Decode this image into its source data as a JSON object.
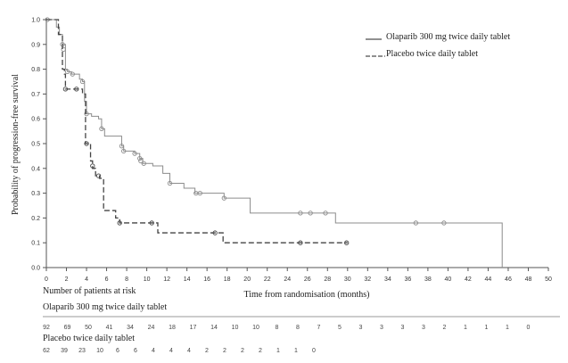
{
  "chart_data": {
    "type": "line",
    "subtype": "kaplan-meier",
    "ylabel": "Probability of progression-free survival",
    "xlabel": "Time from randomisation (months)",
    "xlim": [
      0,
      50
    ],
    "ylim": [
      0,
      1.0
    ],
    "x_ticks": [
      "0",
      "2",
      "4",
      "6",
      "8",
      "10",
      "12",
      "14",
      "16",
      "18",
      "20",
      "22",
      "24",
      "26",
      "28",
      "30",
      "32",
      "34",
      "36",
      "38",
      "40",
      "42",
      "44",
      "46",
      "48",
      "50"
    ],
    "y_ticks": [
      "0.0",
      "0.1",
      "0.2",
      "0.3",
      "0.4",
      "0.5",
      "0.6",
      "0.7",
      "0.8",
      "0.9",
      "1.0"
    ],
    "grid": false,
    "legend_position": "top-right",
    "series": [
      {
        "name": "Olaparib 300 mg twice daily tablet",
        "line_style": "solid",
        "color": "#8c8c8c",
        "steps": [
          [
            0,
            1.0
          ],
          [
            1.0,
            0.97
          ],
          [
            1.3,
            0.94
          ],
          [
            1.6,
            0.9
          ],
          [
            1.9,
            0.8
          ],
          [
            2.1,
            0.79
          ],
          [
            2.5,
            0.78
          ],
          [
            3.3,
            0.76
          ],
          [
            3.6,
            0.75
          ],
          [
            3.8,
            0.67
          ],
          [
            4.0,
            0.62
          ],
          [
            4.5,
            0.61
          ],
          [
            5.2,
            0.6
          ],
          [
            5.5,
            0.56
          ],
          [
            5.8,
            0.53
          ],
          [
            7.5,
            0.49
          ],
          [
            7.7,
            0.47
          ],
          [
            8.8,
            0.46
          ],
          [
            9.3,
            0.44
          ],
          [
            9.6,
            0.42
          ],
          [
            10.6,
            0.41
          ],
          [
            11.6,
            0.38
          ],
          [
            12.3,
            0.34
          ],
          [
            13.7,
            0.32
          ],
          [
            14.8,
            0.3
          ],
          [
            17.7,
            0.28
          ],
          [
            20.3,
            0.22
          ],
          [
            28.5,
            0.22
          ],
          [
            28.8,
            0.18
          ],
          [
            45.4,
            0.18
          ],
          [
            45.4,
            0.0
          ]
        ],
        "censored": [
          [
            0.1,
            1.0
          ],
          [
            1.6,
            0.9
          ],
          [
            1.7,
            0.88
          ],
          [
            2.1,
            0.79
          ],
          [
            2.6,
            0.78
          ],
          [
            3.6,
            0.75
          ],
          [
            4.0,
            0.62
          ],
          [
            5.5,
            0.56
          ],
          [
            7.5,
            0.49
          ],
          [
            7.7,
            0.47
          ],
          [
            8.8,
            0.46
          ],
          [
            9.3,
            0.44
          ],
          [
            9.4,
            0.43
          ],
          [
            9.7,
            0.42
          ],
          [
            12.3,
            0.34
          ],
          [
            14.9,
            0.3
          ],
          [
            15.3,
            0.3
          ],
          [
            17.7,
            0.28
          ],
          [
            25.3,
            0.22
          ],
          [
            26.3,
            0.22
          ],
          [
            27.8,
            0.22
          ],
          [
            36.8,
            0.18
          ],
          [
            39.6,
            0.18
          ]
        ]
      },
      {
        "name": "Placebo twice daily tablet",
        "line_style": "dashed",
        "color": "#444444",
        "steps": [
          [
            0,
            1.0
          ],
          [
            1.2,
            0.94
          ],
          [
            1.6,
            0.8
          ],
          [
            1.8,
            0.78
          ],
          [
            1.9,
            0.72
          ],
          [
            3.6,
            0.7
          ],
          [
            3.9,
            0.5
          ],
          [
            4.4,
            0.43
          ],
          [
            4.6,
            0.4
          ],
          [
            4.9,
            0.37
          ],
          [
            5.3,
            0.36
          ],
          [
            5.7,
            0.23
          ],
          [
            6.9,
            0.2
          ],
          [
            7.3,
            0.18
          ],
          [
            11.0,
            0.18
          ],
          [
            11.1,
            0.14
          ],
          [
            17.5,
            0.14
          ],
          [
            17.6,
            0.1
          ],
          [
            30.0,
            0.1
          ]
        ],
        "censored": [
          [
            1.9,
            0.72
          ],
          [
            3.0,
            0.72
          ],
          [
            4.0,
            0.5
          ],
          [
            4.6,
            0.41
          ],
          [
            5.2,
            0.37
          ],
          [
            7.3,
            0.18
          ],
          [
            10.5,
            0.18
          ],
          [
            16.8,
            0.14
          ],
          [
            25.3,
            0.1
          ],
          [
            29.9,
            0.1
          ]
        ]
      }
    ]
  },
  "risk_table": {
    "title": "Number of patients at risk",
    "groups": [
      {
        "label": "Olaparib 300 mg twice daily tablet",
        "values": [
          "92",
          "69",
          "50",
          "41",
          "34",
          "24",
          "18",
          "17",
          "14",
          "10",
          "10",
          "8",
          "8",
          "7",
          "5",
          "3",
          "3",
          "3",
          "3",
          "2",
          "1",
          "1",
          "1",
          "0"
        ]
      },
      {
        "label": "Placebo twice daily tablet",
        "values": [
          "62",
          "39",
          "23",
          "10",
          "6",
          "6",
          "4",
          "4",
          "4",
          "2",
          "2",
          "2",
          "2",
          "1",
          "1",
          "0"
        ]
      }
    ]
  }
}
